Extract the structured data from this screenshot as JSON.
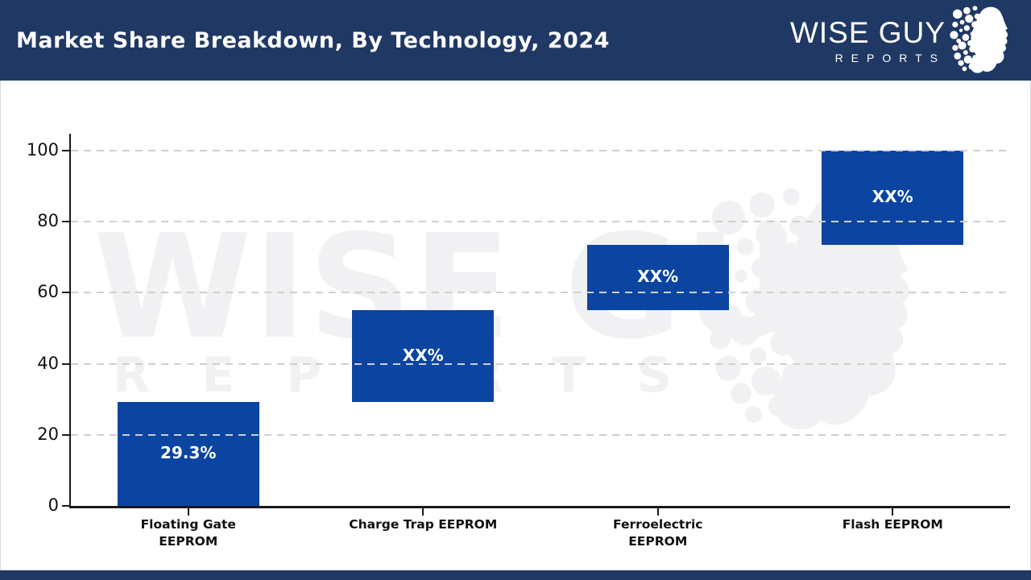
{
  "header": {
    "title": "Market Share Breakdown, By Technology, 2024",
    "logo": {
      "line1": "WISE GUY",
      "line2": "REPORTS"
    }
  },
  "watermark": {
    "line1": "WISE GUY",
    "line2": "REPORTS"
  },
  "colors": {
    "header_bg": "#203864",
    "footer_bg": "#203864",
    "bar": "#0b45a1",
    "grid": "#cfcfcf",
    "axis": "#1a1a1a",
    "bar_label_text": "#ffffff",
    "watermark": "#f1f1f4"
  },
  "chart_data": {
    "type": "bar",
    "subtype": "waterfall",
    "title": "Market Share Breakdown, By Technology, 2024",
    "xlabel": "",
    "ylabel": "",
    "categories": [
      "Floating Gate\nEEPROM",
      "Charge Trap EEPROM",
      "Ferroelectric\nEEPROM",
      "Flash EEPROM"
    ],
    "segments": [
      {
        "category": "Floating Gate EEPROM",
        "start": 0,
        "end": 29.3,
        "label": "29.3%"
      },
      {
        "category": "Charge Trap EEPROM",
        "start": 29.3,
        "end": 55.2,
        "label": "XX%"
      },
      {
        "category": "Ferroelectric EEPROM",
        "start": 55.2,
        "end": 73.5,
        "label": "XX%"
      },
      {
        "category": "Flash EEPROM",
        "start": 73.5,
        "end": 100,
        "label": "XX%"
      }
    ],
    "yticks": [
      0,
      20,
      40,
      60,
      80,
      100
    ],
    "ylim": [
      0,
      100
    ],
    "grid": "horizontal-dashed-above-bars",
    "legend": "none"
  }
}
